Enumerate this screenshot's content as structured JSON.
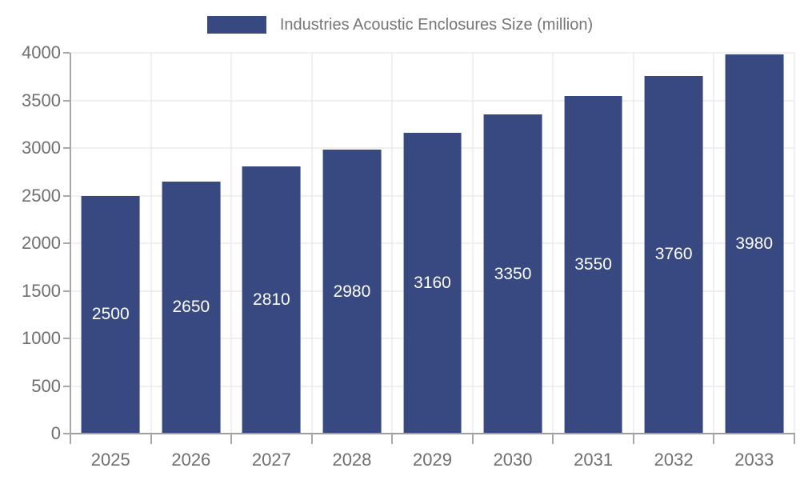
{
  "legend": {
    "label": "Industries Acoustic Enclosures Size (million)"
  },
  "chart_data": {
    "type": "bar",
    "title": "",
    "xlabel": "",
    "ylabel": "",
    "categories": [
      "2025",
      "2026",
      "2027",
      "2028",
      "2029",
      "2030",
      "2031",
      "2032",
      "2033"
    ],
    "values": [
      2500,
      2650,
      2810,
      2980,
      3160,
      3350,
      3550,
      3760,
      3980
    ],
    "series_name": "Industries Acoustic Enclosures Size (million)",
    "ylim": [
      0,
      4000
    ],
    "yticks": [
      0,
      500,
      1000,
      1500,
      2000,
      2500,
      3000,
      3500,
      4000
    ],
    "grid": true,
    "legend_position": "top",
    "bar_labels_visible": true
  },
  "colors": {
    "bar": "#374980",
    "bar_label": "#ffffff",
    "axis_line": "#a8a8a8",
    "gridline": "#e2e2e2",
    "tick_label": "#6f6f6f",
    "legend_text": "#757575",
    "background": "#ffffff"
  }
}
